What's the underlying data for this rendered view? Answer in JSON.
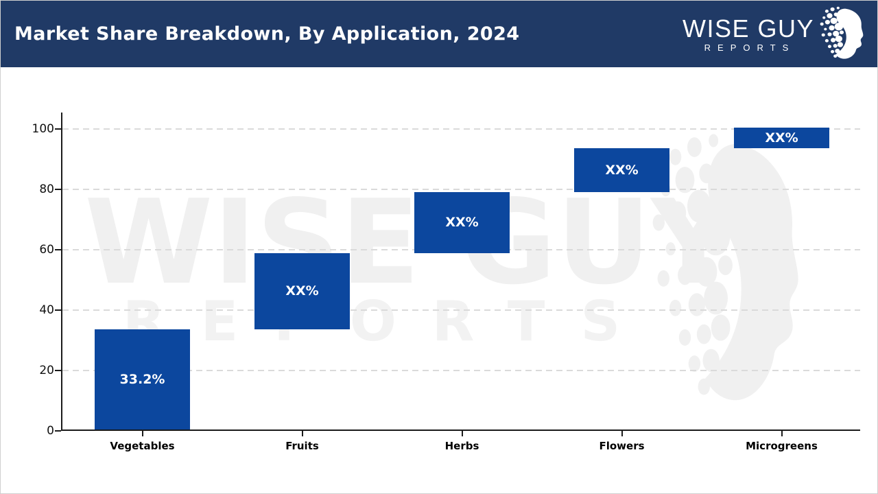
{
  "header": {
    "title": "Market Share Breakdown, By Application, 2024",
    "logo": {
      "line1": "WISE GUY",
      "line2": "REPORTS"
    }
  },
  "watermark": {
    "line1": "WISE GUY",
    "line2": "REPORTS"
  },
  "colors": {
    "header_bg": "#203a66",
    "bar_fill": "#0c479e",
    "bar_label": "#ffffff",
    "axis": "#1a1a1a",
    "gridline": "#dadada",
    "watermark": "#f0f0f0"
  },
  "chart_data": {
    "type": "bar",
    "subtype": "waterfall",
    "title": "Market Share Breakdown, By Application, 2024",
    "xlabel": "",
    "ylabel": "",
    "ylim": [
      0,
      100
    ],
    "yticks": [
      0,
      20,
      40,
      60,
      80,
      100
    ],
    "grid": "horizontal-dashed",
    "legend": "none",
    "categories": [
      "Vegetables",
      "Fruits",
      "Herbs",
      "Flowers",
      "Microgreens"
    ],
    "segments": [
      {
        "category": "Vegetables",
        "start": 0,
        "end": 33.2,
        "value_label": "33.2%"
      },
      {
        "category": "Fruits",
        "start": 33.2,
        "end": 58.5,
        "value_label": "XX%"
      },
      {
        "category": "Herbs",
        "start": 58.5,
        "end": 78.6,
        "value_label": "XX%"
      },
      {
        "category": "Flowers",
        "start": 78.6,
        "end": 93.2,
        "value_label": "XX%"
      },
      {
        "category": "Microgreens",
        "start": 93.2,
        "end": 100,
        "value_label": "XX%"
      }
    ]
  }
}
